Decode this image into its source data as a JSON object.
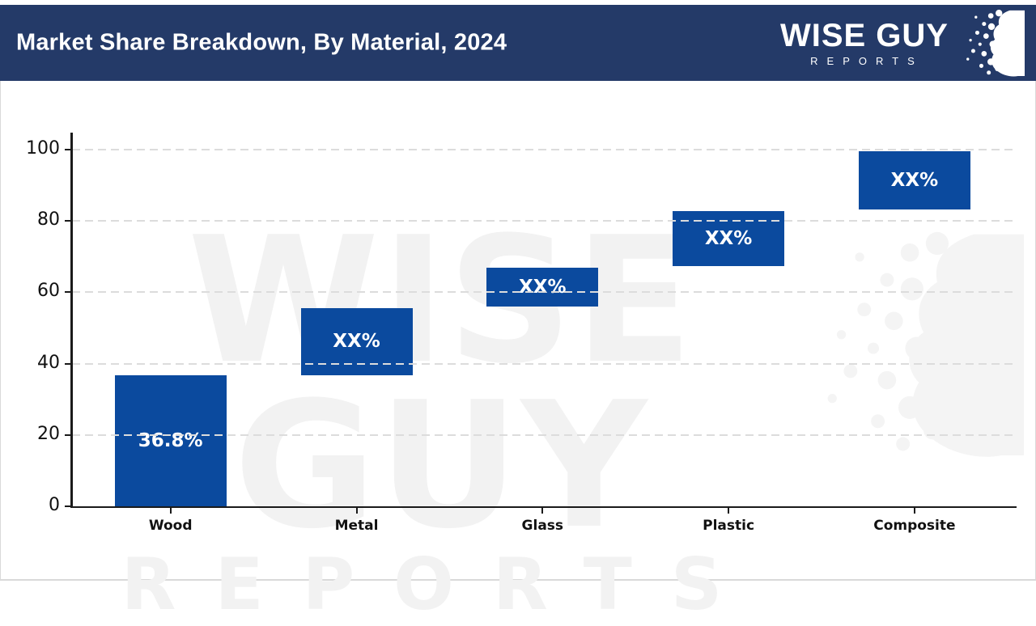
{
  "header": {
    "title": "Market Share Breakdown, By Material, 2024",
    "logo": {
      "line1": "WISE GUY",
      "line2": "REPORTS"
    }
  },
  "watermark": {
    "line1": "WISE GUY",
    "line2": "REPORTS"
  },
  "colors": {
    "header_bg": "#243a68",
    "bar": "#0b4a9e",
    "grid": "#dcdcdc",
    "axis": "#1a1a1a",
    "bar_label_text": "#ffffff",
    "watermark_text": "#f2f2f2"
  },
  "chart_data": {
    "type": "bar",
    "subtype": "waterfall",
    "title": "Market Share Breakdown, By Material, 2024",
    "xlabel": "",
    "ylabel": "",
    "categories": [
      "Wood",
      "Metal",
      "Glass",
      "Plastic",
      "Composite"
    ],
    "segments": [
      {
        "category": "Wood",
        "start": 0,
        "end": 36.8,
        "label": "36.8%"
      },
      {
        "category": "Metal",
        "start": 36.8,
        "end": 55.6,
        "label": "XX%"
      },
      {
        "category": "Glass",
        "start": 55.9,
        "end": 67.0,
        "label": "XX%"
      },
      {
        "category": "Plastic",
        "start": 67.3,
        "end": 82.8,
        "label": "XX%"
      },
      {
        "category": "Composite",
        "start": 83.2,
        "end": 99.6,
        "label": "XX%"
      }
    ],
    "yticks": [
      0,
      20,
      40,
      60,
      80,
      100
    ],
    "ylim": [
      0,
      104.8
    ],
    "grid": "horizontal-dashed",
    "legend": "none",
    "units": "%"
  }
}
